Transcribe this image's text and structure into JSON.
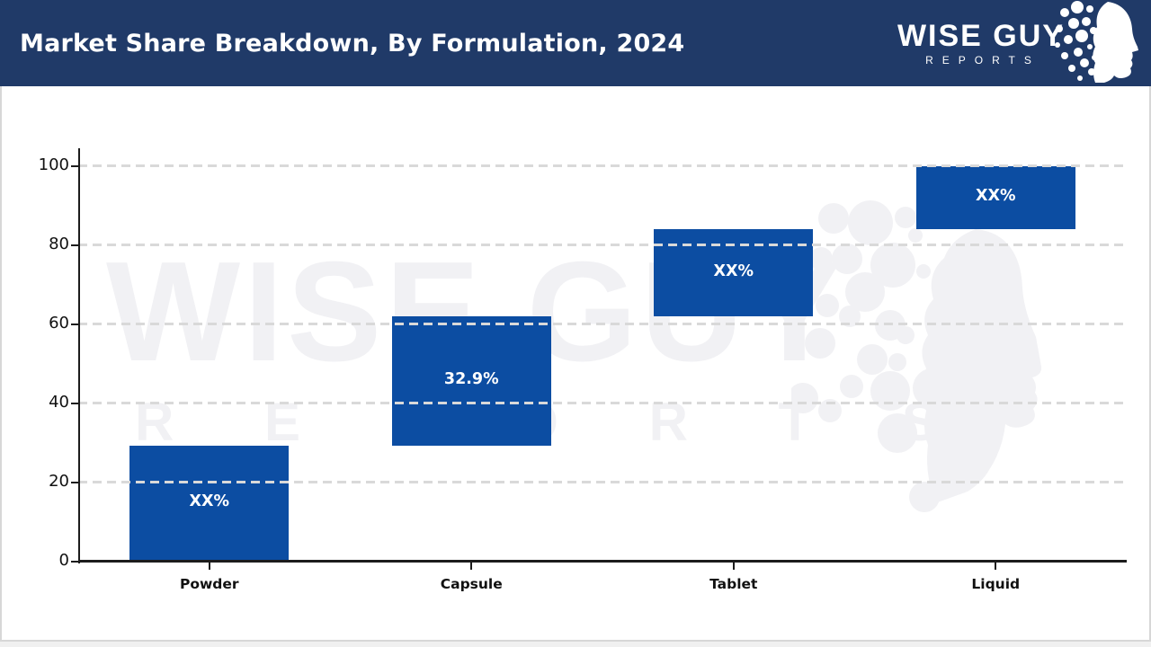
{
  "header": {
    "title": "Market Share Breakdown, By Formulation, 2024",
    "logo_line1": "WISE GUY",
    "logo_line2": "REPORTS"
  },
  "watermark": {
    "line1": "WISE GUY",
    "line2": "R E P O R T S"
  },
  "chart_data": {
    "type": "bar",
    "variant": "floating-waterfall",
    "title": "Market Share Breakdown, By Formulation, 2024",
    "categories": [
      "Powder",
      "Capsule",
      "Tablet",
      "Liquid"
    ],
    "bars": [
      {
        "category": "Powder",
        "start": 0,
        "end": 29.1,
        "value_label": "XX%"
      },
      {
        "category": "Capsule",
        "start": 29.1,
        "end": 62.0,
        "value_label": "32.9%"
      },
      {
        "category": "Tablet",
        "start": 62.0,
        "end": 83.9,
        "value_label": "XX%"
      },
      {
        "category": "Liquid",
        "start": 83.9,
        "end": 100,
        "value_label": "XX%"
      }
    ],
    "yticks": [
      0,
      20,
      40,
      60,
      80,
      100
    ],
    "ylim": [
      0,
      105
    ],
    "xlabel": "",
    "ylabel": "",
    "legend": "none",
    "grid": "dashed-horizontal",
    "gridlines_over_bars": true
  },
  "colors": {
    "header_bg": "#203A68",
    "bar": "#0C4DA2",
    "bar_label": "#FFFFFF",
    "grid": "#D9D9D9",
    "axis": "#1C1C1C",
    "watermark": "#F1F1F4"
  }
}
